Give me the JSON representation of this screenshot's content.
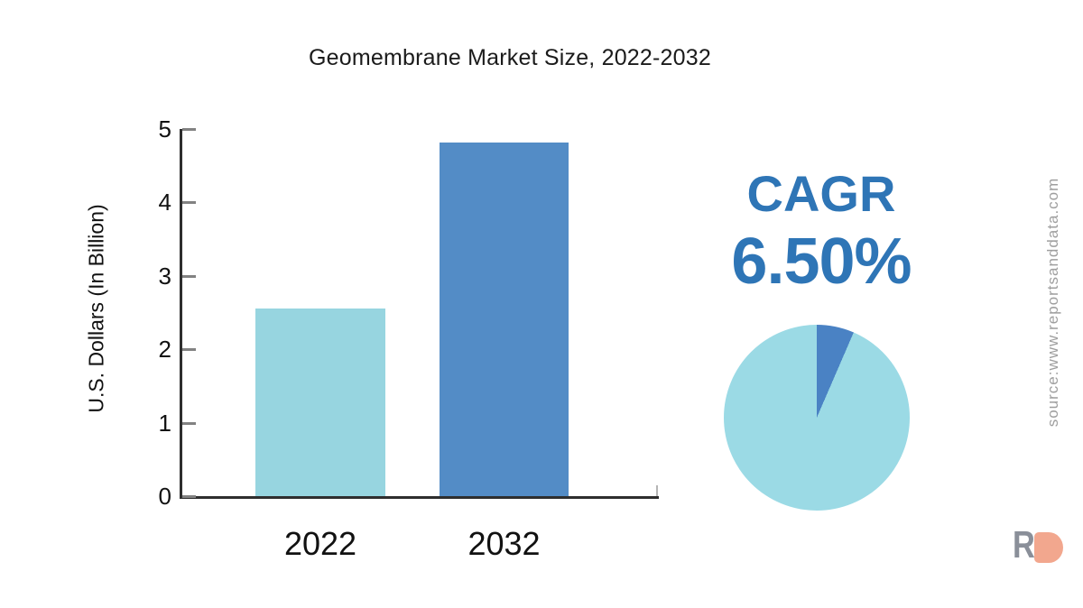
{
  "title": "Geomembrane Market Size, 2022-2032",
  "chart_data": {
    "type": "bar",
    "title": "Geomembrane Market Size, 2022-2032",
    "categories": [
      "2022",
      "2032"
    ],
    "values": [
      2.56,
      4.81
    ],
    "xlabel": "",
    "ylabel": "U.S. Dollars (In Billion)",
    "ylim": [
      0,
      5
    ],
    "yticks": [
      0,
      1,
      2,
      3,
      4,
      5
    ],
    "bar_colors": [
      "#97D5E0",
      "#538CC6"
    ],
    "grid": false,
    "legend_position": "none"
  },
  "cagr": {
    "label": "CAGR",
    "value": "6.50%",
    "text_color": "#2E75B6",
    "pie": {
      "slice_percent": 6.5,
      "slice_color": "#4A82C4",
      "remainder_color": "#9BDAE5"
    }
  },
  "source": {
    "text": "source:www.reportsanddata.com"
  },
  "logo": {
    "letter_r": "R",
    "r_color": "#8A8F99",
    "d_color": "#F2A78E"
  }
}
